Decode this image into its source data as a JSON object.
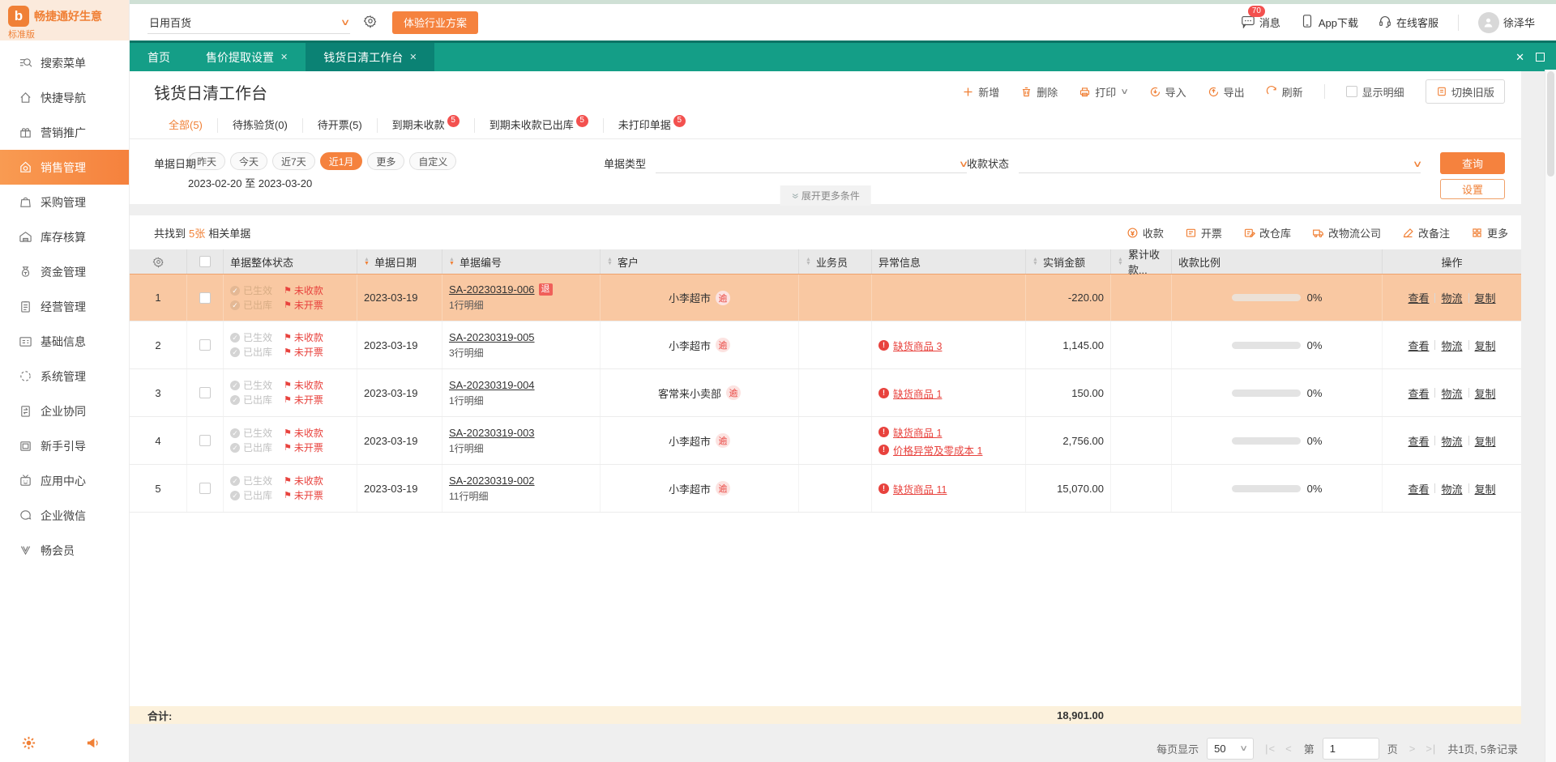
{
  "brand": {
    "name": "畅捷通好生意",
    "edition": "标准版",
    "mark": "b"
  },
  "topbar": {
    "org": "日用百货",
    "trial_button": "体验行业方案",
    "messages": "消息",
    "messages_badge": "70",
    "app_download": "App下载",
    "support": "在线客服",
    "user": "徐泽华"
  },
  "tabs": [
    {
      "label": "首页",
      "closable": false,
      "active": false
    },
    {
      "label": "售价提取设置",
      "closable": true,
      "active": false
    },
    {
      "label": "钱货日清工作台",
      "closable": true,
      "active": true
    }
  ],
  "sidebar": {
    "items": [
      {
        "id": "search-menu",
        "icon": "search",
        "label": "搜索菜单",
        "active": false
      },
      {
        "id": "quick-nav",
        "icon": "home",
        "label": "快捷导航",
        "active": false
      },
      {
        "id": "marketing",
        "icon": "gift",
        "label": "营销推广",
        "active": false
      },
      {
        "id": "sales",
        "icon": "shop",
        "label": "销售管理",
        "active": true
      },
      {
        "id": "purchase",
        "icon": "bag",
        "label": "采购管理",
        "active": false
      },
      {
        "id": "inventory",
        "icon": "warehouse",
        "label": "库存核算",
        "active": false
      },
      {
        "id": "funds",
        "icon": "money",
        "label": "资金管理",
        "active": false
      },
      {
        "id": "operation",
        "icon": "clipboard",
        "label": "经营管理",
        "active": false
      },
      {
        "id": "basic-info",
        "icon": "card",
        "label": "基础信息",
        "active": false
      },
      {
        "id": "system",
        "icon": "sysloop",
        "label": "系统管理",
        "active": false
      },
      {
        "id": "enterprise-coop",
        "icon": "coop",
        "label": "企业协同",
        "active": false
      },
      {
        "id": "newbie-guide",
        "icon": "guide",
        "label": "新手引导",
        "active": false
      },
      {
        "id": "app-center",
        "icon": "appcenter",
        "label": "应用中心",
        "active": false
      },
      {
        "id": "wecom",
        "icon": "wecom",
        "label": "企业微信",
        "active": false
      },
      {
        "id": "member",
        "icon": "vip",
        "label": "畅会员",
        "active": false
      }
    ]
  },
  "page": {
    "title": "钱货日清工作台",
    "toolbar": [
      {
        "id": "add",
        "label": "新增",
        "caret": false
      },
      {
        "id": "delete",
        "label": "删除",
        "caret": false
      },
      {
        "id": "print",
        "label": "打印",
        "caret": true
      },
      {
        "id": "import",
        "label": "导入",
        "caret": false
      },
      {
        "id": "export",
        "label": "导出",
        "caret": false
      },
      {
        "id": "refresh",
        "label": "刷新",
        "caret": false
      }
    ],
    "show_detail": "显示明细",
    "switch_old": "切换旧版"
  },
  "filter_tabs": [
    {
      "label": "全部(5)",
      "badge": "",
      "active": true
    },
    {
      "label": "待拣验货(0)",
      "badge": "",
      "active": false
    },
    {
      "label": "待开票(5)",
      "badge": "",
      "active": false
    },
    {
      "label": "到期未收款",
      "badge": "5",
      "active": false
    },
    {
      "label": "到期未收款已出库",
      "badge": "5",
      "active": false
    },
    {
      "label": "未打印单据",
      "badge": "5",
      "active": false
    }
  ],
  "filters": {
    "date_label": "单据日期",
    "date_chips": [
      "昨天",
      "今天",
      "近7天",
      "近1月",
      "更多",
      "自定义"
    ],
    "active_chip": "近1月",
    "date_range": "2023-02-20 至 2023-03-20",
    "type_label": "单据类型",
    "payment_label": "收款状态",
    "search": "查询",
    "settings": "设置",
    "expand_more": "展开更多条件"
  },
  "result": {
    "prefix": "共找到",
    "count": "5张",
    "suffix": "相关单据"
  },
  "batch_actions": [
    {
      "id": "receive-payment",
      "icon": "coin",
      "label": "收款"
    },
    {
      "id": "invoice",
      "icon": "invoice",
      "label": "开票"
    },
    {
      "id": "change-warehouse",
      "icon": "boxedit",
      "label": "改仓库"
    },
    {
      "id": "change-logistics",
      "icon": "truck",
      "label": "改物流公司"
    },
    {
      "id": "change-remark",
      "icon": "pen",
      "label": "改备注"
    },
    {
      "id": "more",
      "icon": "grid",
      "label": "更多"
    }
  ],
  "table": {
    "columns": [
      {
        "type": "gear",
        "label": ""
      },
      {
        "type": "checkbox",
        "label": ""
      },
      {
        "label": "单据整体状态",
        "sort": ""
      },
      {
        "label": "单据日期",
        "sort": "desc"
      },
      {
        "label": "单据编号",
        "sort": "desc"
      },
      {
        "label": "客户",
        "sort": "none"
      },
      {
        "label": "业务员",
        "sort": "none"
      },
      {
        "label": "异常信息",
        "sort": ""
      },
      {
        "label": "实销金额",
        "sort": "none"
      },
      {
        "label": "累计收款...",
        "sort": "none"
      },
      {
        "label": "收款比例",
        "sort": ""
      },
      {
        "label": "操作",
        "sort": ""
      }
    ],
    "row_actions": [
      "查看",
      "物流",
      "复制"
    ],
    "rows": [
      {
        "num": "1",
        "ok1": "已生效",
        "bad1": "未收款",
        "ok2": "已出库",
        "bad2": "未开票",
        "date": "2023-03-19",
        "doc": "SA-20230319-006",
        "doc_badge": "退",
        "lines": "1行明细",
        "customer": "小李超市",
        "customer_badge": "逾",
        "salesman": "",
        "issues": [],
        "amount": "-220.00",
        "received": "",
        "ratio": "0%",
        "selected": true
      },
      {
        "num": "2",
        "ok1": "已生效",
        "bad1": "未收款",
        "ok2": "已出库",
        "bad2": "未开票",
        "date": "2023-03-19",
        "doc": "SA-20230319-005",
        "doc_badge": "",
        "lines": "3行明细",
        "customer": "小李超市",
        "customer_badge": "逾",
        "salesman": "",
        "issues": [
          "缺货商品 3"
        ],
        "amount": "1,145.00",
        "received": "",
        "ratio": "0%",
        "selected": false
      },
      {
        "num": "3",
        "ok1": "已生效",
        "bad1": "未收款",
        "ok2": "已出库",
        "bad2": "未开票",
        "date": "2023-03-19",
        "doc": "SA-20230319-004",
        "doc_badge": "",
        "lines": "1行明细",
        "customer": "客常来小卖部",
        "customer_badge": "逾",
        "salesman": "",
        "issues": [
          "缺货商品 1"
        ],
        "amount": "150.00",
        "received": "",
        "ratio": "0%",
        "selected": false
      },
      {
        "num": "4",
        "ok1": "已生效",
        "bad1": "未收款",
        "ok2": "已出库",
        "bad2": "未开票",
        "date": "2023-03-19",
        "doc": "SA-20230319-003",
        "doc_badge": "",
        "lines": "1行明细",
        "customer": "小李超市",
        "customer_badge": "逾",
        "salesman": "",
        "issues": [
          "缺货商品 1",
          "价格异常及零成本 1"
        ],
        "amount": "2,756.00",
        "received": "",
        "ratio": "0%",
        "selected": false
      },
      {
        "num": "5",
        "ok1": "已生效",
        "bad1": "未收款",
        "ok2": "已出库",
        "bad2": "未开票",
        "date": "2023-03-19",
        "doc": "SA-20230319-002",
        "doc_badge": "",
        "lines": "11行明细",
        "customer": "小李超市",
        "customer_badge": "逾",
        "salesman": "",
        "issues": [
          "缺货商品 11"
        ],
        "amount": "15,070.00",
        "received": "",
        "ratio": "0%",
        "selected": false
      }
    ]
  },
  "summary": {
    "label": "合计:",
    "total": "18,901.00"
  },
  "pagination": {
    "per_page_label": "每页显示",
    "per_page": "50",
    "page_prefix": "第",
    "page": "1",
    "page_suffix": "页",
    "total_text": "共1页, 5条记录"
  },
  "colors": {
    "accent": "#f5823e",
    "teal": "#149e87",
    "danger": "#e8423d",
    "selected_row": "#f9c8a2"
  }
}
